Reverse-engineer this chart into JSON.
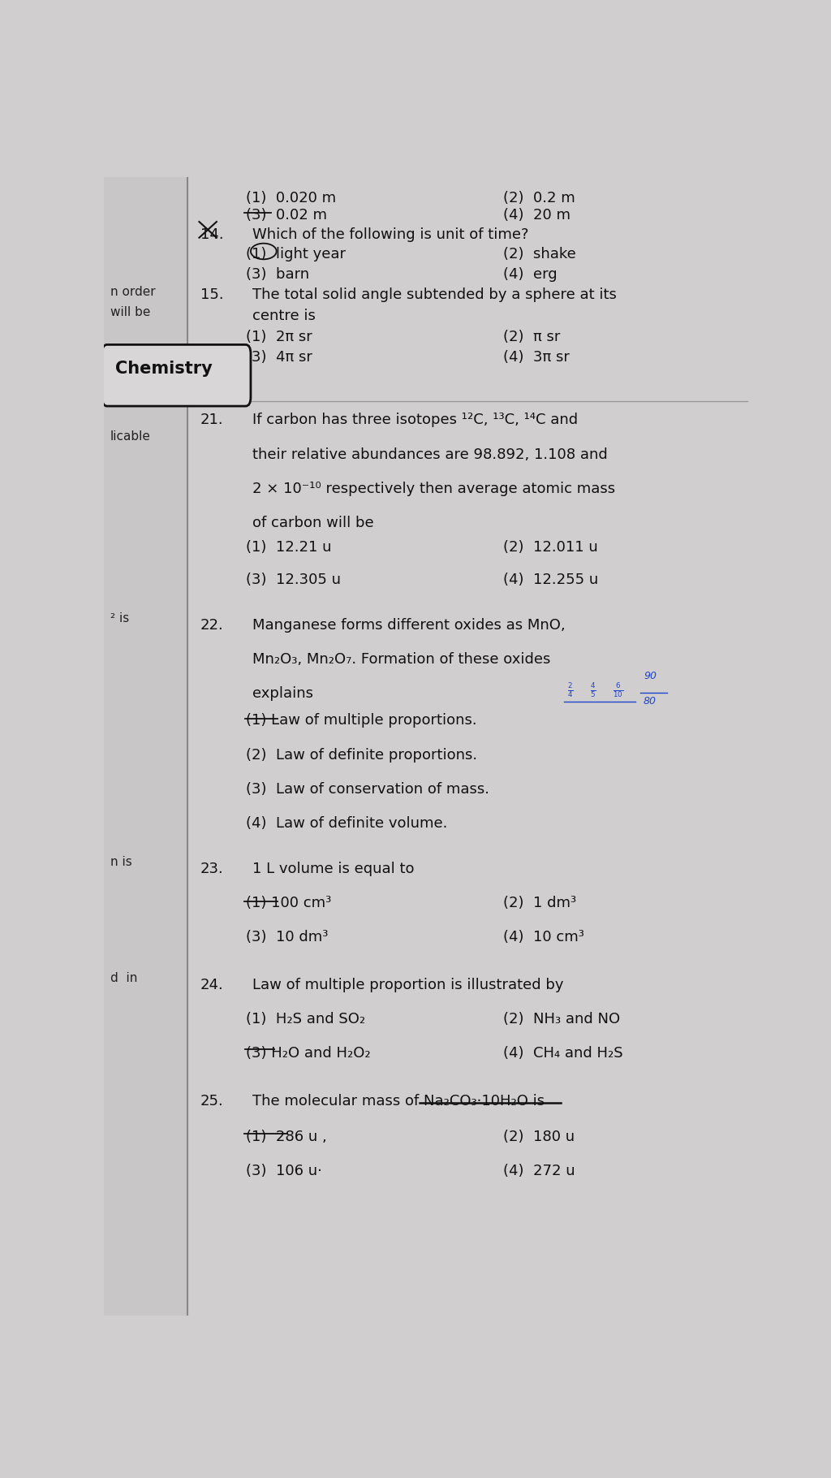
{
  "bg_color": "#d0cece",
  "text_color": "#1a1a1a",
  "left_col_color": "#c8c6c6",
  "title": "Chemistry",
  "q21_lines": [
    "If carbon has three isotopes ¹²C, ¹³C, ¹⁴C and",
    "their relative abundances are 98.892, 1.108 and",
    "2 × 10⁻¹⁰ respectively then average atomic mass",
    "of carbon will be"
  ],
  "q22_lines": [
    "Manganese forms different oxides as MnO,",
    "Mn₂O₃, Mn₂O₇. Formation of these oxides",
    "explains"
  ],
  "q23_lines": [
    "1 L volume is equal to"
  ],
  "q24_lines": [
    "Law of multiple proportion is illustrated by"
  ],
  "q25_lines": [
    "The molecular mass of Na₂CO₃·10H₂O is"
  ]
}
